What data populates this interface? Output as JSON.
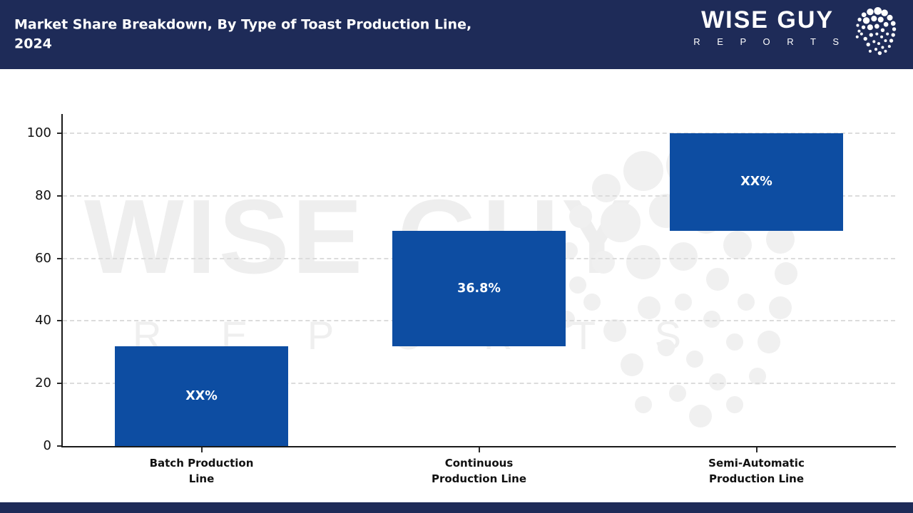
{
  "header": {
    "title": "Market Share Breakdown, By Type of Toast Production Line,\n2024",
    "bg_color": "#1e2b58",
    "logo": {
      "line1": "WISE GUY",
      "line2": "R E P O R T S",
      "head_icon": "dotted-head-profile"
    }
  },
  "watermark": {
    "line1": "WISE GUY",
    "line2": "R E P O R T S",
    "head_icon": "dotted-head-profile"
  },
  "chart_data": {
    "type": "bar",
    "subtype": "floating-waterfall",
    "title": "Market Share Breakdown, By Type of Toast Production Line, 2024",
    "categories": [
      "Batch Production\nLine",
      "Continuous\nProduction Line",
      "Semi-Automatic\nProduction Line"
    ],
    "bars": [
      {
        "start": 0,
        "end": 32.0,
        "label": "XX%"
      },
      {
        "start": 32.0,
        "end": 68.8,
        "label": "36.8%"
      },
      {
        "start": 68.8,
        "end": 100,
        "label": "XX%"
      }
    ],
    "ylim": [
      0,
      100
    ],
    "yticks": [
      0,
      20,
      40,
      60,
      80,
      100
    ],
    "grid": {
      "horizontal": true,
      "style": "dashed",
      "color": "#dcdcdc"
    },
    "bar_color": "#0d4da2",
    "label_color": "#ffffff",
    "legend": null,
    "xlabel": "",
    "ylabel": ""
  },
  "footer": {
    "bg_color": "#1e2b58"
  }
}
